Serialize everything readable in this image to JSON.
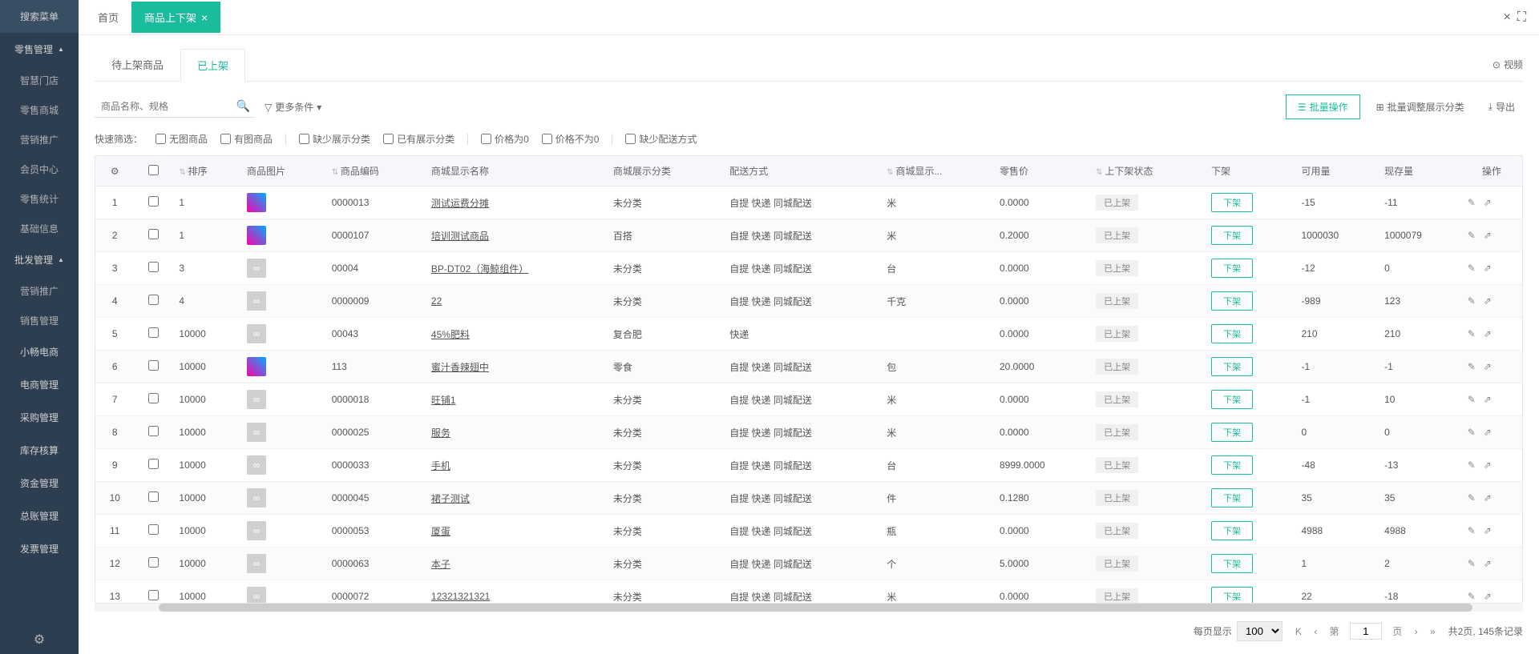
{
  "sidebar": {
    "items": [
      {
        "label": "搜索菜单",
        "type": "item"
      },
      {
        "label": "零售管理",
        "type": "expanded"
      },
      {
        "label": "智慧门店",
        "type": "sub"
      },
      {
        "label": "零售商城",
        "type": "sub"
      },
      {
        "label": "营销推广",
        "type": "sub"
      },
      {
        "label": "会员中心",
        "type": "sub"
      },
      {
        "label": "零售统计",
        "type": "sub"
      },
      {
        "label": "基础信息",
        "type": "sub"
      },
      {
        "label": "批发管理",
        "type": "expanded"
      },
      {
        "label": "营销推广",
        "type": "sub"
      },
      {
        "label": "销售管理",
        "type": "sub"
      },
      {
        "label": "小畅电商",
        "type": "item"
      },
      {
        "label": "电商管理",
        "type": "item"
      },
      {
        "label": "采购管理",
        "type": "item"
      },
      {
        "label": "库存核算",
        "type": "item"
      },
      {
        "label": "资金管理",
        "type": "item"
      },
      {
        "label": "总账管理",
        "type": "item"
      },
      {
        "label": "发票管理",
        "type": "item"
      }
    ],
    "gear_icon": "⚙"
  },
  "tabs": {
    "home": "首页",
    "active": "商品上下架",
    "close_icon": "×",
    "fullscreen_icon": "⛶"
  },
  "sub_tabs": {
    "pending": "待上架商品",
    "listed": "已上架",
    "video": "视频",
    "video_icon": "⊙"
  },
  "toolbar": {
    "search_placeholder": "商品名称、规格",
    "search_icon": "🔍",
    "filter_icon": "▽",
    "more_filter": "更多条件",
    "more_arrow": "▾",
    "batch_op_icon": "☰",
    "batch_op": "批量操作",
    "batch_cat_icon": "⊞",
    "batch_cat": "批量调整展示分类",
    "export_icon": "⤓",
    "export": "导出"
  },
  "quick_filter": {
    "label": "快速筛选：",
    "items": [
      "无图商品",
      "有图商品",
      "缺少展示分类",
      "已有展示分类",
      "价格为0",
      "价格不为0",
      "缺少配送方式"
    ]
  },
  "columns": {
    "gear": "⚙",
    "sort": "排序",
    "image": "商品图片",
    "code": "商品编码",
    "name": "商城显示名称",
    "category": "商城展示分类",
    "delivery": "配送方式",
    "display": "商城显示...",
    "price": "零售价",
    "status": "上下架状态",
    "action": "下架",
    "available": "可用量",
    "stock": "现存量",
    "ops": "操作"
  },
  "rows": [
    {
      "idx": "1",
      "sort": "1",
      "has_img": true,
      "code": "0000013",
      "name": "测试运费分摊",
      "cat": "未分类",
      "delivery": "自提 快递 同城配送",
      "disp": "米",
      "price": "0.0000",
      "status": "已上架",
      "avail": "-15",
      "stock": "-11"
    },
    {
      "idx": "2",
      "sort": "1",
      "has_img": true,
      "code": "0000107",
      "name": "培训测试商品",
      "cat": "百搭",
      "delivery": "自提 快递 同城配送",
      "disp": "米",
      "price": "0.2000",
      "status": "已上架",
      "avail": "1000030",
      "stock": "1000079"
    },
    {
      "idx": "3",
      "sort": "3",
      "has_img": false,
      "code": "00004",
      "name": "BP-DT02（海鲸组件）",
      "cat": "未分类",
      "delivery": "自提 快递 同城配送",
      "disp": "台",
      "price": "0.0000",
      "status": "已上架",
      "avail": "-12",
      "stock": "0"
    },
    {
      "idx": "4",
      "sort": "4",
      "has_img": false,
      "code": "0000009",
      "name": "22",
      "cat": "未分类",
      "delivery": "自提 快递 同城配送",
      "disp": "千克",
      "price": "0.0000",
      "status": "已上架",
      "avail": "-989",
      "stock": "123"
    },
    {
      "idx": "5",
      "sort": "10000",
      "has_img": false,
      "code": "00043",
      "name": "45%肥料",
      "cat": "复合肥",
      "delivery": "快递",
      "disp": "",
      "price": "0.0000",
      "status": "已上架",
      "avail": "210",
      "stock": "210"
    },
    {
      "idx": "6",
      "sort": "10000",
      "has_img": true,
      "code": "113",
      "name": "蜜汁香辣翅中",
      "cat": "零食",
      "delivery": "自提 快递 同城配送",
      "disp": "包",
      "price": "20.0000",
      "status": "已上架",
      "avail": "-1",
      "stock": "-1"
    },
    {
      "idx": "7",
      "sort": "10000",
      "has_img": false,
      "code": "0000018",
      "name": "旺铺1",
      "cat": "未分类",
      "delivery": "自提 快递 同城配送",
      "disp": "米",
      "price": "0.0000",
      "status": "已上架",
      "avail": "-1",
      "stock": "10"
    },
    {
      "idx": "8",
      "sort": "10000",
      "has_img": false,
      "code": "0000025",
      "name": "服务",
      "cat": "未分类",
      "delivery": "自提 快递 同城配送",
      "disp": "米",
      "price": "0.0000",
      "status": "已上架",
      "avail": "0",
      "stock": "0"
    },
    {
      "idx": "9",
      "sort": "10000",
      "has_img": false,
      "code": "0000033",
      "name": "手机",
      "cat": "未分类",
      "delivery": "自提 快递 同城配送",
      "disp": "台",
      "price": "8999.0000",
      "status": "已上架",
      "avail": "-48",
      "stock": "-13"
    },
    {
      "idx": "10",
      "sort": "10000",
      "has_img": false,
      "code": "0000045",
      "name": "裙子测试",
      "cat": "未分类",
      "delivery": "自提 快递 同城配送",
      "disp": "件",
      "price": "0.1280",
      "status": "已上架",
      "avail": "35",
      "stock": "35"
    },
    {
      "idx": "11",
      "sort": "10000",
      "has_img": false,
      "code": "0000053",
      "name": "厦蛋",
      "cat": "未分类",
      "delivery": "自提 快递 同城配送",
      "disp": "瓶",
      "price": "0.0000",
      "status": "已上架",
      "avail": "4988",
      "stock": "4988"
    },
    {
      "idx": "12",
      "sort": "10000",
      "has_img": false,
      "code": "0000063",
      "name": "本子",
      "cat": "未分类",
      "delivery": "自提 快递 同城配送",
      "disp": "个",
      "price": "5.0000",
      "status": "已上架",
      "avail": "1",
      "stock": "2"
    },
    {
      "idx": "13",
      "sort": "10000",
      "has_img": false,
      "code": "0000072",
      "name": "12321321321",
      "cat": "未分类",
      "delivery": "自提 快递 同城配送",
      "disp": "米",
      "price": "0.0000",
      "status": "已上架",
      "avail": "22",
      "stock": "-18"
    }
  ],
  "row_action": "下架",
  "op_icons": {
    "edit": "✎",
    "link": "⇗"
  },
  "pagination": {
    "per_page_label": "每页显示",
    "per_page_value": "100",
    "first": "K",
    "prev": "‹",
    "page_label_pre": "第",
    "page_value": "1",
    "page_label_post": "页",
    "next": "›",
    "last": "»",
    "total": "共2页, 145条记录"
  },
  "colors": {
    "accent": "#1abc9c",
    "sidebar": "#2c3e50"
  }
}
